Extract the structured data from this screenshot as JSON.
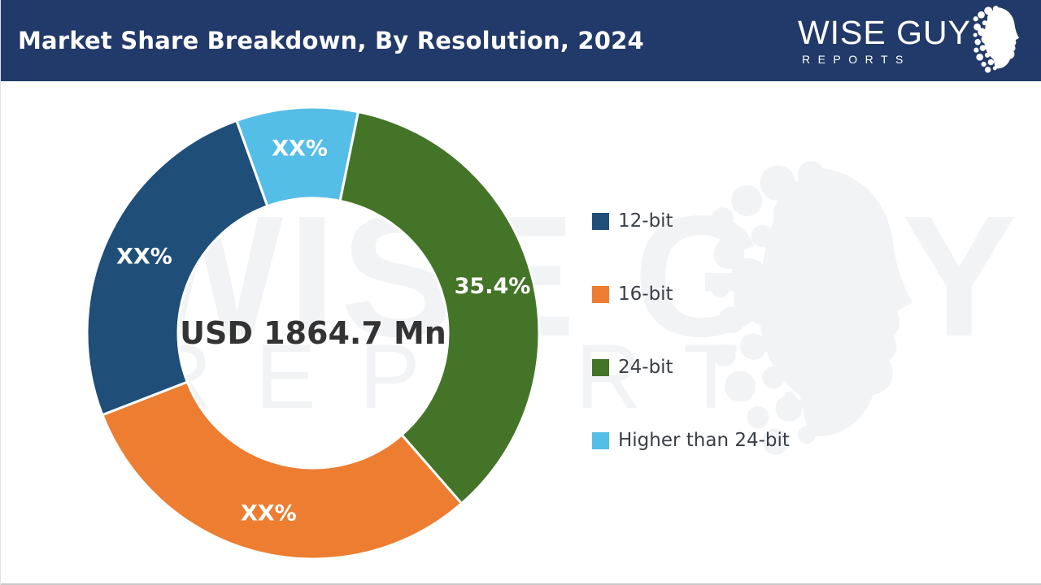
{
  "header": {
    "title": "Market Share Breakdown, By Resolution, 2024",
    "logo": {
      "line1": "WISE GUY",
      "line2": "REPORTS"
    }
  },
  "chart_data": {
    "type": "pie",
    "subtype": "donut",
    "title": "Market Share Breakdown, By Resolution, 2024",
    "center_label": "USD 1864.7 Mn",
    "legend_position": "right",
    "start_angle_deg_cw_from_top": -19.8,
    "segments": [
      {
        "name": "12-bit",
        "display_label": "XX%",
        "value_pct": 25.4,
        "color": "#1F4E79"
      },
      {
        "name": "16-bit",
        "display_label": "XX%",
        "value_pct": 30.5,
        "color": "#ED7D31"
      },
      {
        "name": "24-bit",
        "display_label": "35.4%",
        "value_pct": 35.4,
        "color": "#447428"
      },
      {
        "name": "Higher than 24-bit",
        "display_label": "XX%",
        "value_pct": 8.7,
        "color": "#55BEE7"
      }
    ]
  },
  "watermark": {
    "line1": "WISE GUY",
    "line2": "R E P O R T S"
  }
}
